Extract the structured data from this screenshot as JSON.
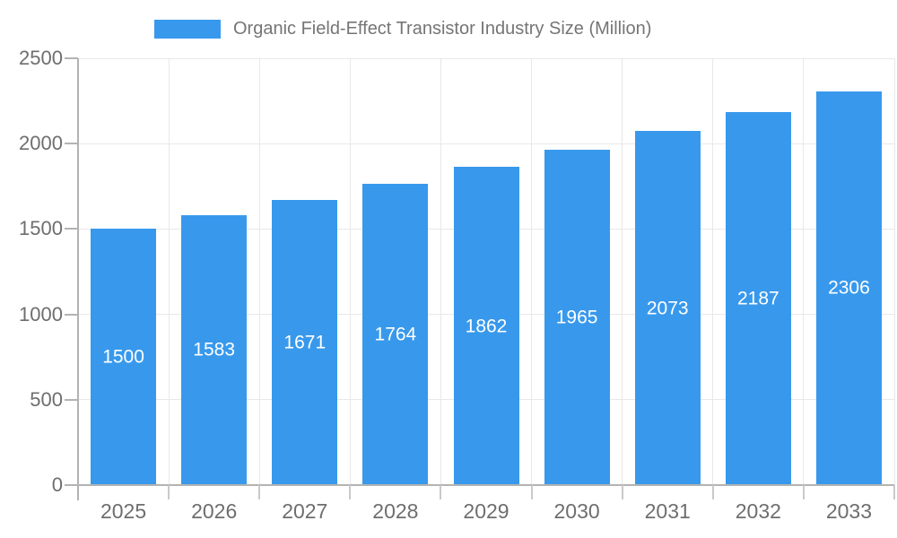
{
  "legend": {
    "label": "Organic Field-Effect Transistor Industry Size (Million)"
  },
  "chart_data": {
    "type": "bar",
    "title": "Organic Field-Effect Transistor Industry Size (Million)",
    "series_name": "Organic Field-Effect Transistor Industry Size (Million)",
    "categories": [
      "2025",
      "2026",
      "2027",
      "2028",
      "2029",
      "2030",
      "2031",
      "2032",
      "2033"
    ],
    "values": [
      1500,
      1583,
      1671,
      1764,
      1862,
      1965,
      2073,
      2187,
      2306
    ],
    "bar_value_labels": [
      "1500",
      "1583",
      "1671",
      "1764",
      "1862",
      "1965",
      "2073",
      "2187",
      "2306"
    ],
    "xlabel": "",
    "ylabel": "",
    "ylim": [
      0,
      2500
    ],
    "ytick_interval": 500,
    "ytick_labels": [
      "0",
      "500",
      "1000",
      "1500",
      "2000",
      "2500"
    ],
    "grid": true,
    "legend_position": "top"
  },
  "colors": {
    "bar": "#3899EC",
    "bar_label_text": "#FFFFFF",
    "axis_line": "#B3B3B3",
    "category_tick": "#C9C9C9",
    "gridline": "#E8E8E8",
    "axis_text": "#6E6E6E",
    "legend_text": "#757575",
    "background": "#FFFFFF"
  }
}
